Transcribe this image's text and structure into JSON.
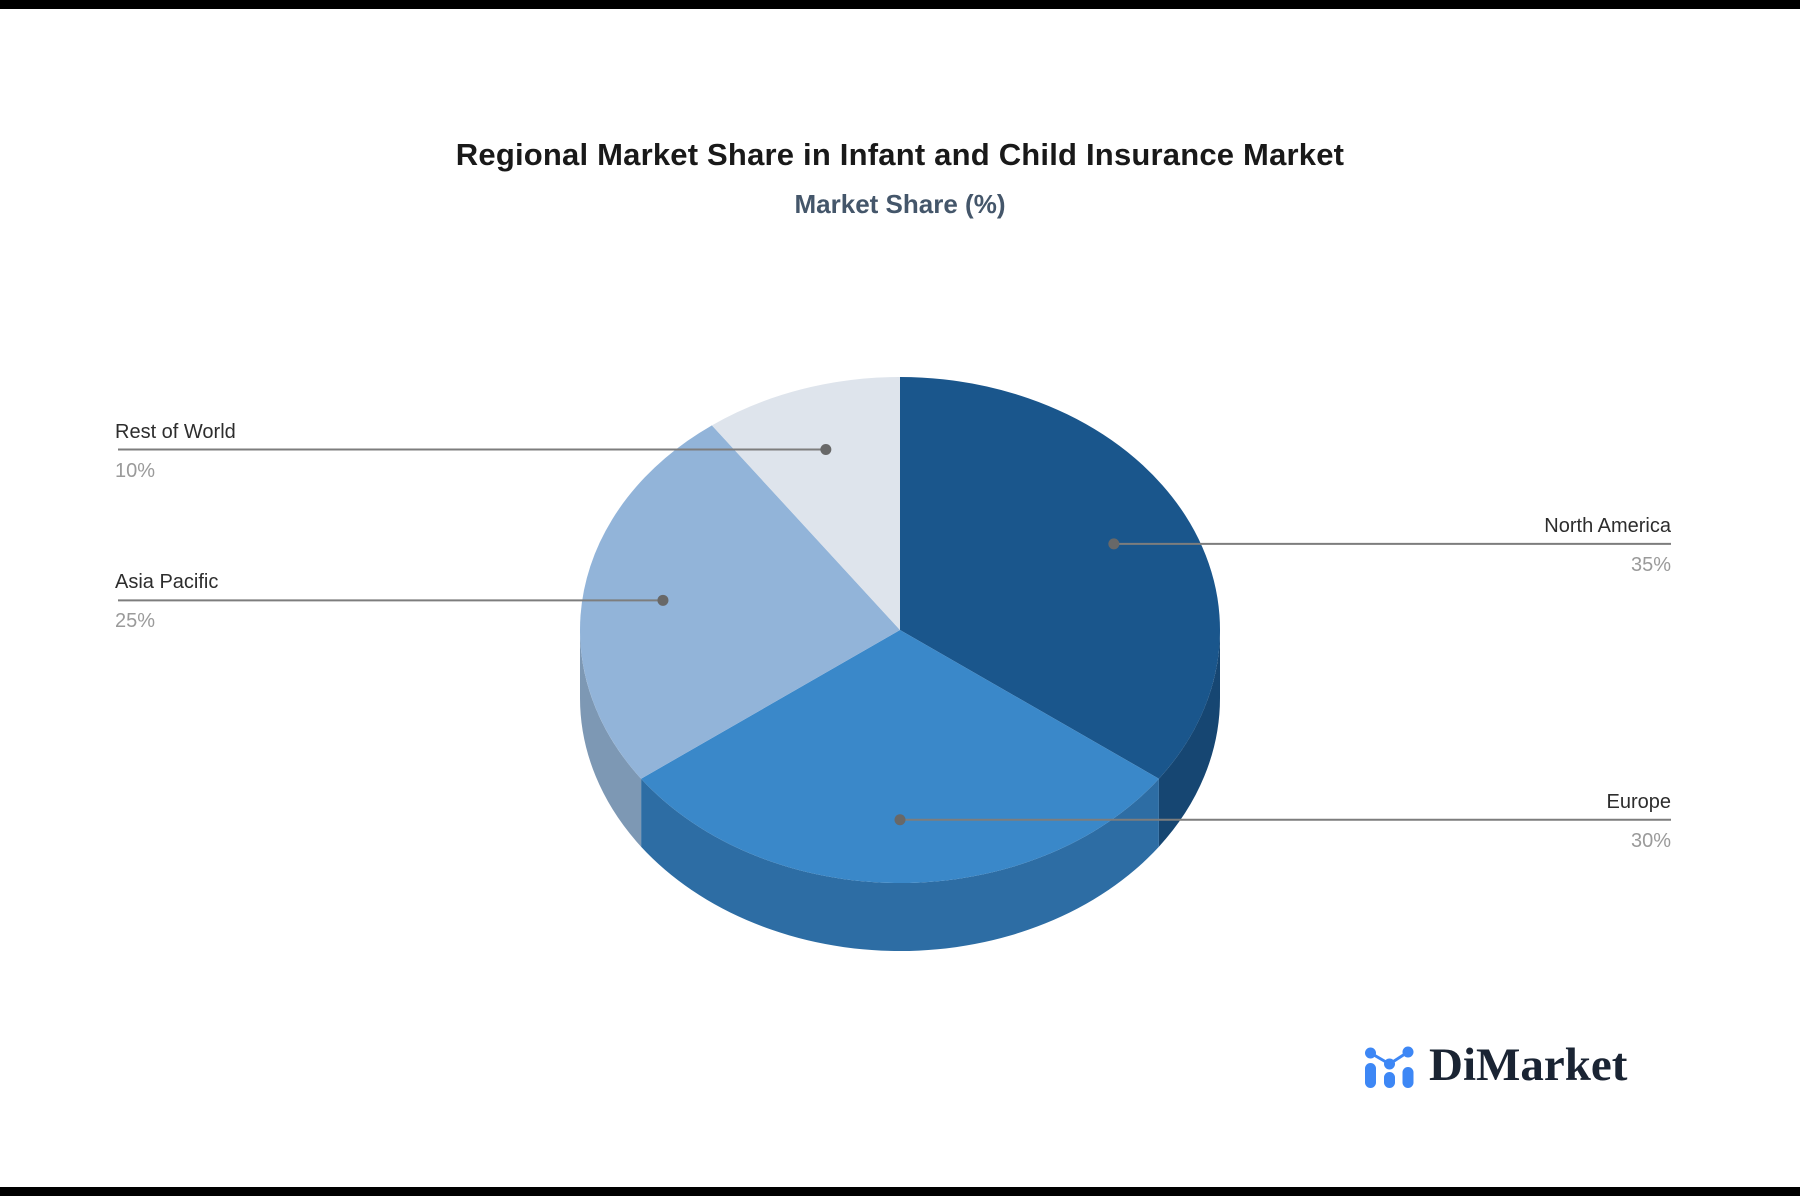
{
  "title": {
    "text": "Regional Market Share in Infant and Child Insurance Market"
  },
  "subtitle": {
    "text": "Market Share (%)"
  },
  "logo": {
    "text": "DiMarket",
    "icon": "bar-chart-with-dots-icon",
    "icon_color": "#3d87f5",
    "text_color": "#1a2433"
  },
  "chart_data": {
    "type": "pie",
    "style": "3d",
    "title": "Regional Market Share in Infant and Child Insurance Market",
    "subtitle": "Market Share (%)",
    "unit": "%",
    "categories": [
      "North America",
      "Europe",
      "Asia Pacific",
      "Rest of World"
    ],
    "values": [
      35,
      30,
      25,
      10
    ],
    "display_labels": [
      "35%",
      "30%",
      "25%",
      "10%"
    ],
    "slice_colors": [
      "#1a568c",
      "#3a88c9",
      "#92b4d9",
      "#dee4ec"
    ],
    "slice_side_colors": [
      "#164672",
      "#2d6da4",
      "#7d98b4",
      "#c6cfdd"
    ],
    "start_angle": "top",
    "direction": "clockwise",
    "legend": "none",
    "label_style": "outside-leader-lines",
    "label_name_color": "#2d2d2d",
    "label_value_color": "#9a9a9a",
    "leader_line_color": "#7d7d7d",
    "leader_dot_color": "#686868",
    "background": "#ffffff"
  }
}
